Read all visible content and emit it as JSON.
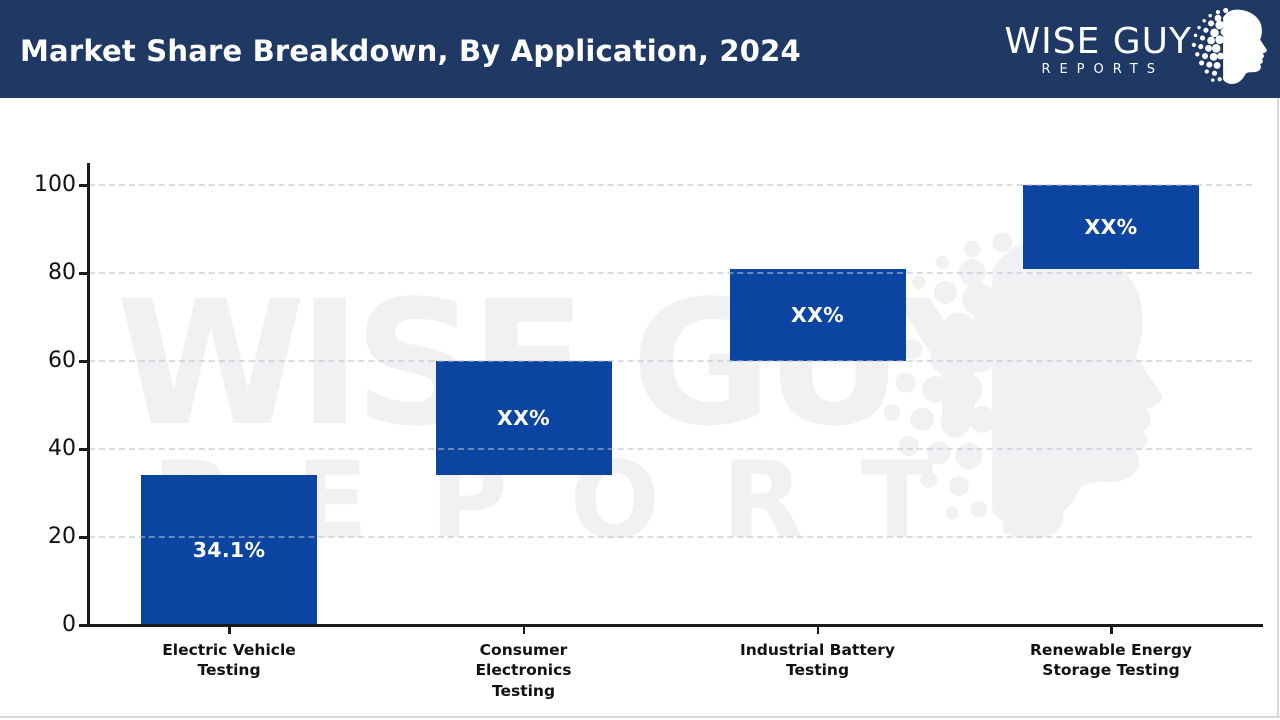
{
  "header": {
    "title": "Market Share Breakdown, By Application, 2024",
    "logo": {
      "line1": "WISE GUY",
      "line2": "REPORTS"
    }
  },
  "watermark": {
    "line1": "WISE GUY",
    "line2": "REPORTS"
  },
  "colors": {
    "header_bg": "#1f3864",
    "bar": "#0b45a1",
    "axis": "#1a1a1a",
    "watermark": "#f1f1f4"
  },
  "chart_data": {
    "type": "bar",
    "variant": "waterfall",
    "title": "Market Share Breakdown, By Application, 2024",
    "categories": [
      "Electric Vehicle\nTesting",
      "Consumer\nElectronics\nTesting",
      "Industrial Battery\nTesting",
      "Renewable Energy\nStorage Testing"
    ],
    "segments": [
      {
        "category": "Electric Vehicle Testing",
        "start": 0,
        "end": 34.1,
        "label": "34.1%"
      },
      {
        "category": "Consumer Electronics Testing",
        "start": 34.1,
        "end": 60,
        "label": "XX%"
      },
      {
        "category": "Industrial Battery Testing",
        "start": 60,
        "end": 81,
        "label": "XX%"
      },
      {
        "category": "Renewable Energy Storage Testing",
        "start": 81,
        "end": 100,
        "label": "XX%"
      }
    ],
    "ylim": [
      0,
      100
    ],
    "yticks": [
      0,
      20,
      40,
      60,
      80,
      100
    ],
    "grid": "horizontal-dashed",
    "legend": "none",
    "bar_color": "#0b45a1"
  }
}
